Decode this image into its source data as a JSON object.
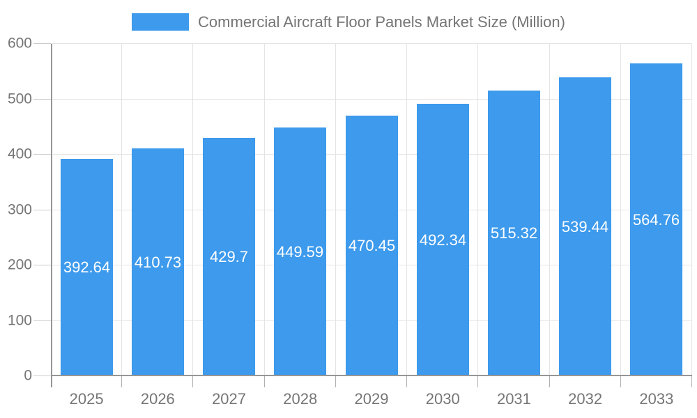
{
  "chart_data": {
    "type": "bar",
    "title": "Commercial Aircraft Floor Panels Market Size (Million)",
    "series_name": "Commercial Aircraft Floor Panels Market Size (Million)",
    "legend_position": "top",
    "categories": [
      "2025",
      "2026",
      "2027",
      "2028",
      "2029",
      "2030",
      "2031",
      "2032",
      "2033"
    ],
    "values": [
      392.64,
      410.73,
      429.7,
      449.59,
      470.45,
      492.34,
      515.32,
      539.44,
      564.76
    ],
    "value_labels": [
      "392.64",
      "410.73",
      "429.7",
      "449.59",
      "470.45",
      "492.34",
      "515.32",
      "539.44",
      "564.76"
    ],
    "xlabel": "",
    "ylabel": "",
    "ylim": [
      0,
      600
    ],
    "yticks": [
      0,
      100,
      200,
      300,
      400,
      500,
      600
    ],
    "grid": true,
    "colors": {
      "bar": "#3D9AEC",
      "value_label": "#FFFFFF",
      "axis_text": "#757575",
      "axis_line": "#969696",
      "gridline": "#E4E4E4",
      "y_tick": "#CCCCCC",
      "x_tick": "#B0B0B0",
      "background": "#FFFFFF"
    }
  }
}
